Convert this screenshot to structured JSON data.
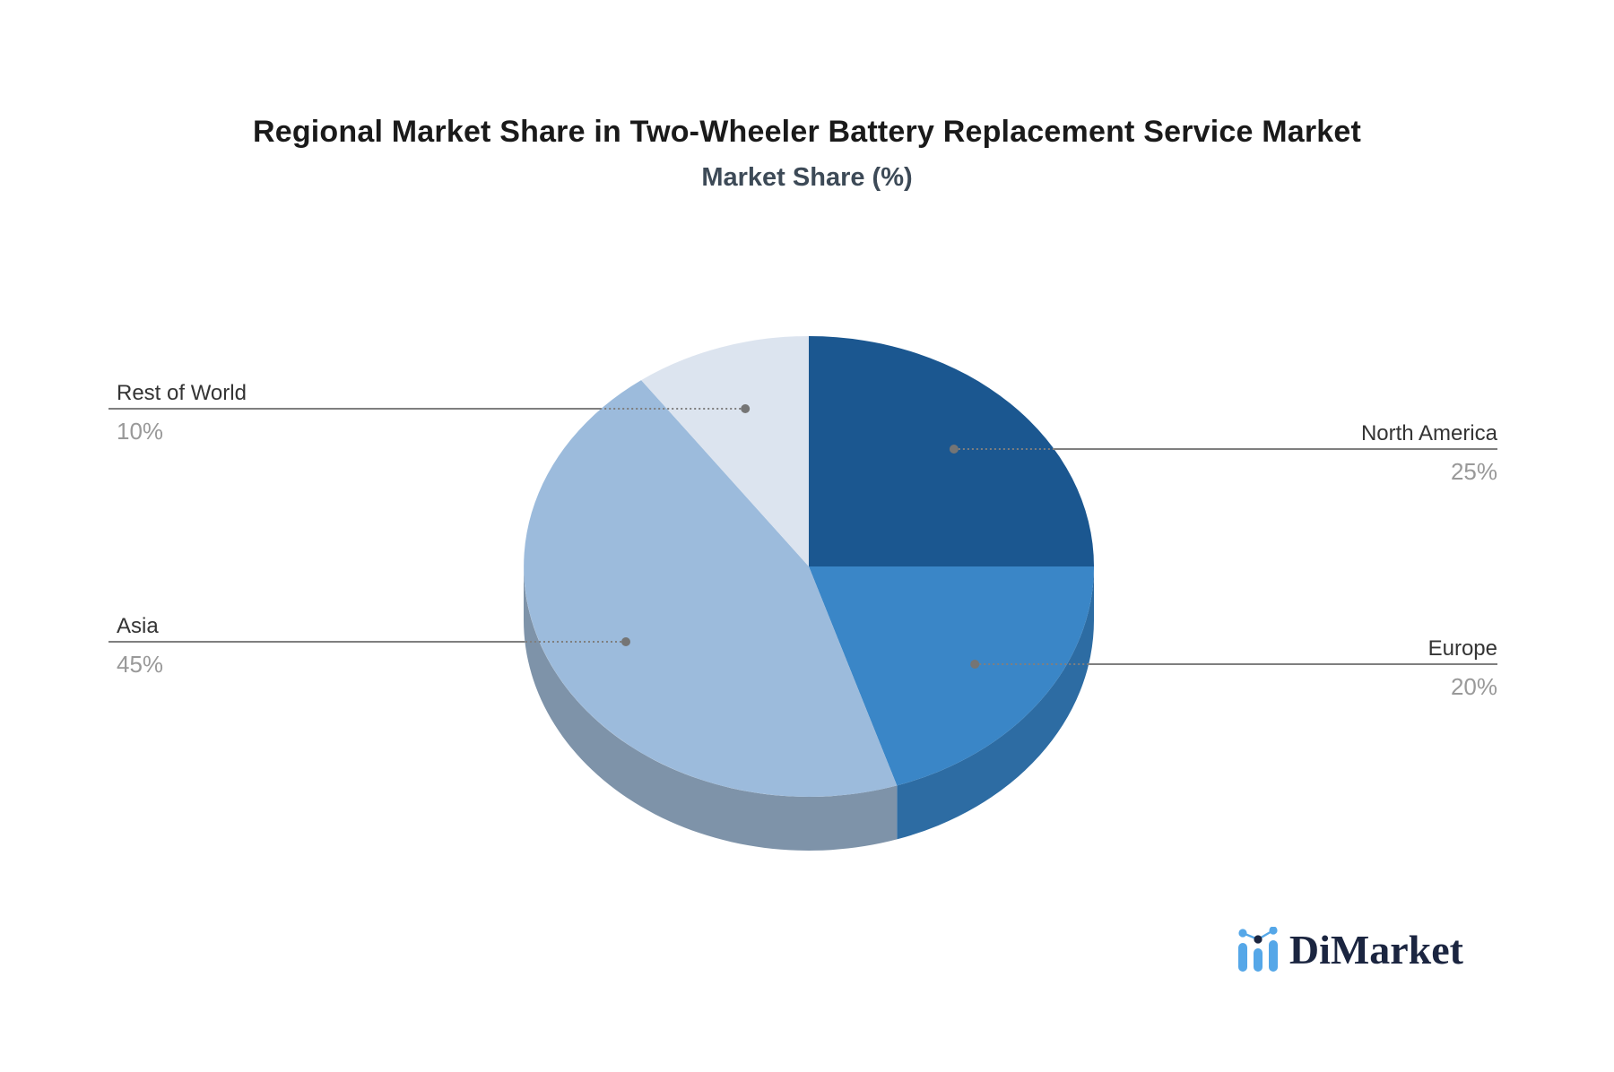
{
  "chart_data": {
    "type": "pie",
    "style": "3d",
    "title": "Regional Market Share in Two-Wheeler Battery Replacement Service Market",
    "subtitle": "Market Share (%)",
    "direction": "clockwise",
    "start_angle_deg": 0,
    "value_suffix": "%",
    "legend_position": "none-leader-line-labels",
    "slices": [
      {
        "label": "North America",
        "value": 25,
        "color": "#1b5790"
      },
      {
        "label": "Europe",
        "value": 20,
        "color": "#3a86c7",
        "side_color": "#2d6ca3"
      },
      {
        "label": "Asia",
        "value": 45,
        "color": "#9cbbdc",
        "side_color": "#7e93a9"
      },
      {
        "label": "Rest of World",
        "value": 10,
        "color": "#dce4ef"
      }
    ]
  },
  "colors": {
    "title": "#1a1a1a",
    "subtitle": "#3d4a57",
    "label_text": "#343434",
    "value_text": "#999999",
    "connector_line": "#7f7f7f",
    "connector_dot": "#757575"
  },
  "branding": {
    "logo_text": "DiMarket",
    "logo_icon": "bar-line-chart-icon",
    "logo_text_color": "#1b2540",
    "logo_icon_color": "#55a7e8",
    "logo_icon_dark_dot_color": "#1b2540"
  }
}
